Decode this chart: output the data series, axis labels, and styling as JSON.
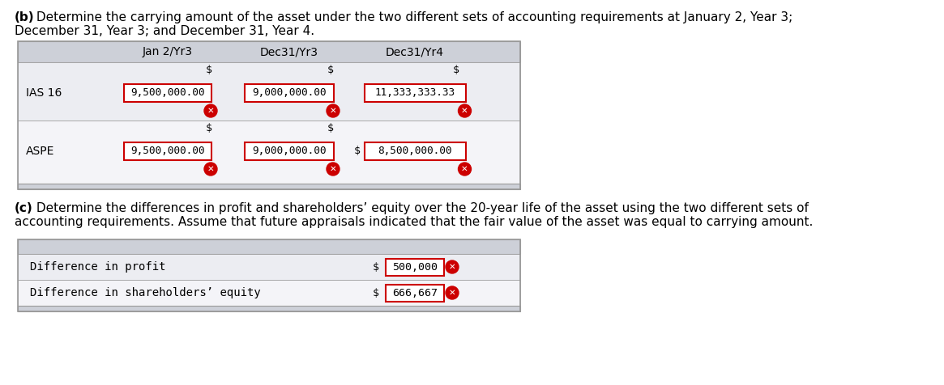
{
  "title_b_bold": "(b)",
  "title_b_rest": " Determine the carrying amount of the asset under the two different sets of accounting requirements at January 2, Year 3;",
  "title_b_line2": "December 31, Year 3; and December 31, Year 4.",
  "title_c_bold": "(c)",
  "title_c_rest": " Determine the differences in profit and shareholders’ equity over the 20-year life of the asset using the two different sets of",
  "title_c_line2": "accounting requirements. Assume that future appraisals indicated that the fair value of the asset was equal to carrying amount.",
  "col_headers": [
    "Jan 2/Yr3",
    "Dec31/Yr3",
    "Dec31/Yr4"
  ],
  "ias_values": [
    "9,500,000.00",
    "9,000,000.00",
    "11,333,333.33"
  ],
  "aspe_values": [
    "9,500,000.00",
    "9,000,000.00",
    "8,500,000.00"
  ],
  "c_rows": [
    {
      "label": "Difference in profit",
      "value": "500,000"
    },
    {
      "label": "Difference in shareholders’ equity",
      "value": "666,667"
    }
  ],
  "header_bg": "#cdd0d8",
  "row1_bg": "#ecedf2",
  "row2_bg": "#f4f4f8",
  "border_color": "#999999",
  "box_border": "#cc0000",
  "x_color": "#cc0000",
  "white": "#ffffff",
  "title_fs": 11,
  "hdr_fs": 10,
  "label_fs": 10,
  "val_fs": 9.5
}
